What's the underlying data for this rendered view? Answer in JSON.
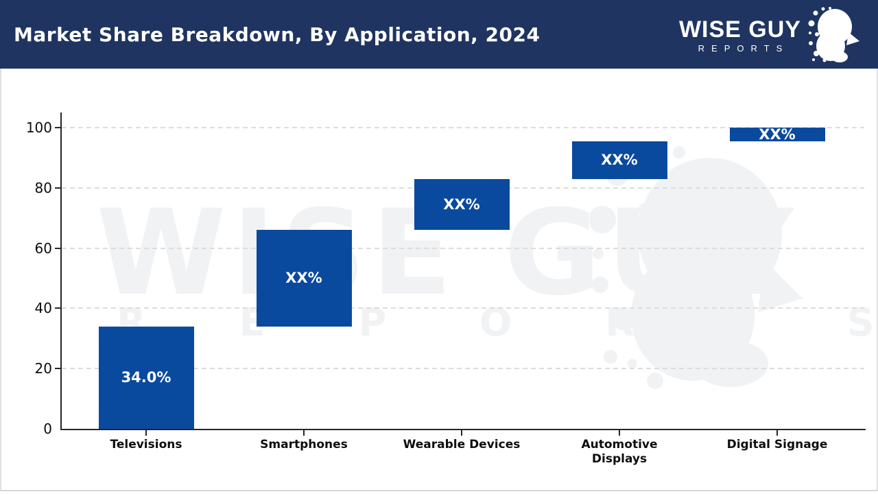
{
  "header": {
    "title": "Market Share Breakdown, By Application, 2024",
    "bg_color": "#1F3460",
    "logo": {
      "line1": "WISE GUY",
      "line2": "REPORTS",
      "face_icon": "dotted-head-profile"
    }
  },
  "watermark": {
    "line1": "WISE GUY",
    "line2": "R E P O R T S",
    "face_icon": "dotted-head-profile"
  },
  "chart_data": {
    "type": "bar",
    "subtype": "waterfall",
    "title": "Market Share Breakdown, By Application, 2024",
    "xlabel": "",
    "ylabel": "",
    "categories": [
      "Televisions",
      "Smartphones",
      "Wearable Devices",
      "Automotive Displays",
      "Digital Signage"
    ],
    "segments": [
      {
        "category": "Televisions",
        "start": 0,
        "end": 34,
        "value_label": "34.0%"
      },
      {
        "category": "Smartphones",
        "start": 34,
        "end": 66,
        "value_label": "XX%"
      },
      {
        "category": "Wearable Devices",
        "start": 66,
        "end": 83,
        "value_label": "XX%"
      },
      {
        "category": "Automotive Displays",
        "start": 83,
        "end": 95.5,
        "value_label": "XX%"
      },
      {
        "category": "Digital Signage",
        "start": 95.5,
        "end": 100,
        "value_label": "XX%"
      }
    ],
    "yticks": [
      0,
      20,
      40,
      60,
      80,
      100
    ],
    "ylim": [
      0,
      105
    ],
    "bar_color": "#0A4A9E",
    "bar_label_color": "#ffffff",
    "grid": "horizontal-dashed",
    "gridline_color": "#dcdcdc",
    "axis_color": "#262626",
    "legend": "none"
  }
}
